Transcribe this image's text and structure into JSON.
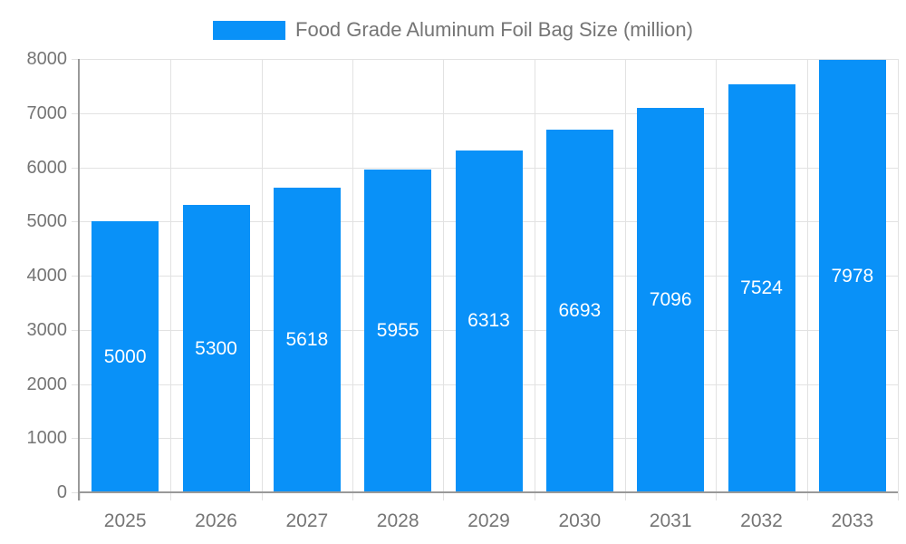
{
  "chart_data": {
    "type": "bar",
    "title": "",
    "legend": {
      "label": "Food Grade Aluminum Foil Bag Size (million)",
      "position": "top-center"
    },
    "categories": [
      "2025",
      "2026",
      "2027",
      "2028",
      "2029",
      "2030",
      "2031",
      "2032",
      "2033"
    ],
    "series": [
      {
        "name": "Food Grade Aluminum Foil Bag Size (million)",
        "values": [
          5000,
          5300,
          5618,
          5955,
          6313,
          6693,
          7096,
          7524,
          7978
        ]
      }
    ],
    "bar_value_labels": [
      "5000",
      "5300",
      "5618",
      "5955",
      "6313",
      "6693",
      "7096",
      "7524",
      "7978"
    ],
    "xlabel": "",
    "ylabel": "",
    "ylim": [
      0,
      8000
    ],
    "yticks": [
      0,
      1000,
      2000,
      3000,
      4000,
      5000,
      6000,
      7000,
      8000
    ],
    "ytick_labels": [
      "0",
      "1000",
      "2000",
      "3000",
      "4000",
      "5000",
      "6000",
      "7000",
      "8000"
    ],
    "grid": true,
    "bar_labels_inside": true,
    "colors": {
      "bar": "#0991F8",
      "bar_label_text": "#FFFFFF",
      "axis_text": "#757575",
      "legend_text": "#757575",
      "gridline": "#E2E2E2",
      "axis_line": "#999999",
      "background": "#FFFFFF"
    }
  }
}
